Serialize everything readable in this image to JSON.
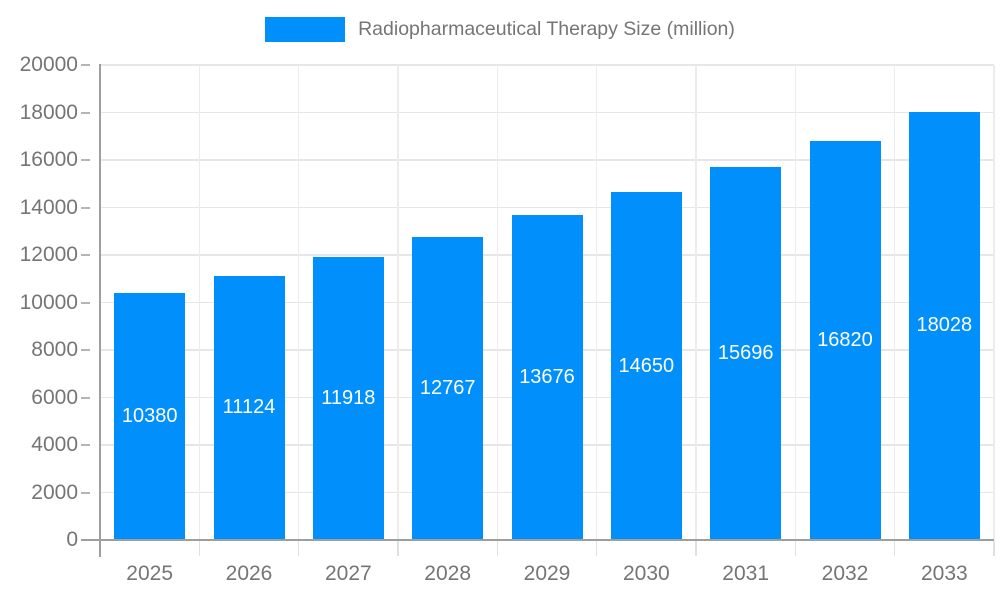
{
  "chart_data": {
    "type": "bar",
    "title": "",
    "legend": "Radiopharmaceutical Therapy Size (million)",
    "legend_position": "top",
    "categories": [
      "2025",
      "2026",
      "2027",
      "2028",
      "2029",
      "2030",
      "2031",
      "2032",
      "2033"
    ],
    "values": [
      10380,
      11124,
      11918,
      12767,
      13676,
      14650,
      15696,
      16820,
      18028
    ],
    "xlabel": "",
    "ylabel": "",
    "ylim": [
      0,
      20000
    ],
    "yticks": [
      0,
      2000,
      4000,
      6000,
      8000,
      10000,
      12000,
      14000,
      16000,
      18000,
      20000
    ],
    "grid": true,
    "colors": {
      "bar": "#008FFB",
      "value_label": "#FFFFFF",
      "axis_label": "#757575",
      "axis_line": "#9E9E9E",
      "gridline": "#E6E6E6",
      "minor_tick": "#B5B5B5"
    }
  }
}
